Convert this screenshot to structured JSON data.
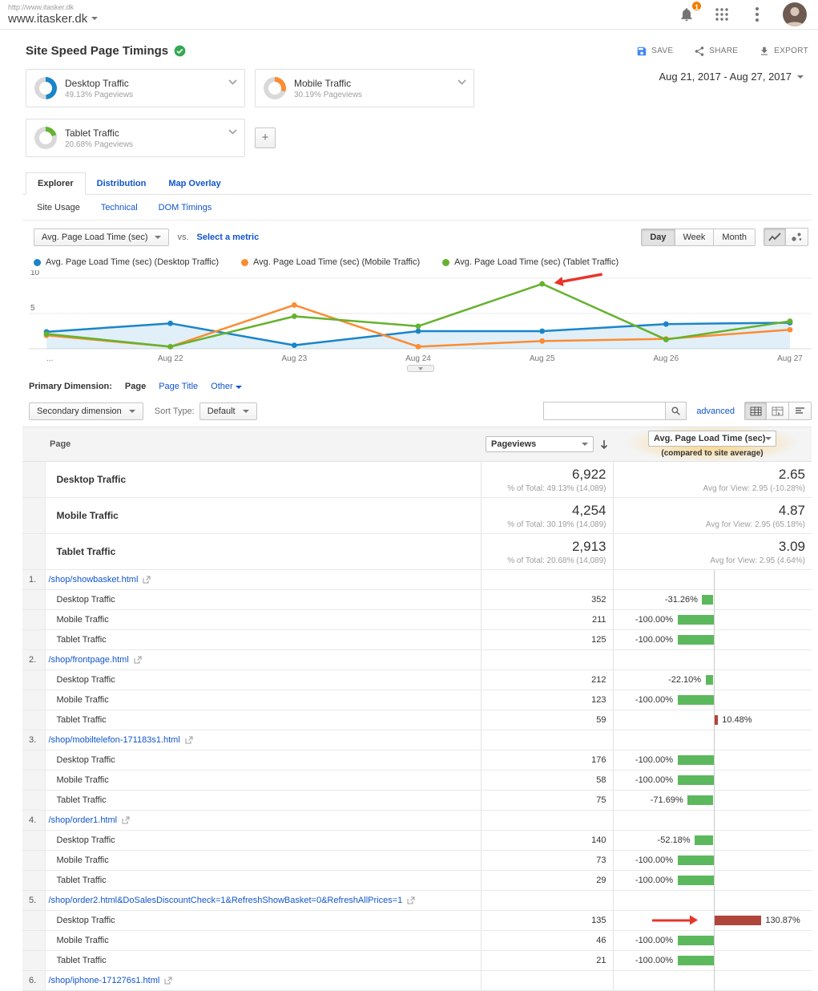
{
  "topbar": {
    "url": "http://www.itasker.dk",
    "site_name": "www.itasker.dk",
    "notification_count": "1"
  },
  "header": {
    "title": "Site Speed Page Timings",
    "save_label": "SAVE",
    "share_label": "SHARE",
    "export_label": "EXPORT",
    "date_range": "Aug 21, 2017 - Aug 27, 2017"
  },
  "segments": [
    {
      "name": "Desktop Traffic",
      "sub": "49.13% Pageviews",
      "percent": 49.13,
      "color": "#1a85c8"
    },
    {
      "name": "Mobile Traffic",
      "sub": "30.19% Pageviews",
      "percent": 30.19,
      "color": "#fb8c32"
    },
    {
      "name": "Tablet Traffic",
      "sub": "20.68% Pageviews",
      "percent": 20.68,
      "color": "#65b22e"
    }
  ],
  "segments_bar": {
    "add_label": "+"
  },
  "tabs": [
    "Explorer",
    "Distribution",
    "Map Overlay"
  ],
  "subtabs": [
    "Site Usage",
    "Technical",
    "DOM Timings"
  ],
  "metric_bar": {
    "metric": "Avg. Page Load Time (sec)",
    "vs": "vs.",
    "select_metric": "Select a metric",
    "granularity": [
      "Day",
      "Week",
      "Month"
    ]
  },
  "chart_data": {
    "type": "line",
    "x": [
      "...",
      "Aug 22",
      "Aug 23",
      "Aug 24",
      "Aug 25",
      "Aug 26",
      "Aug 27"
    ],
    "ylim": [
      0,
      10
    ],
    "yticks": [
      5,
      10
    ],
    "grid": true,
    "legend_position": "top",
    "series": [
      {
        "name": "Avg. Page Load Time (sec) (Desktop Traffic)",
        "color": "#1a85c8",
        "fill": true,
        "values": [
          2.4,
          3.6,
          0.5,
          2.5,
          2.5,
          3.5,
          3.7
        ]
      },
      {
        "name": "Avg. Page Load Time (sec) (Mobile Traffic)",
        "color": "#fb8c32",
        "fill": false,
        "values": [
          1.9,
          0.3,
          6.2,
          0.3,
          1.1,
          1.4,
          2.7
        ]
      },
      {
        "name": "Avg. Page Load Time (sec) (Tablet Traffic)",
        "color": "#65b22e",
        "fill": false,
        "values": [
          2.1,
          0.3,
          4.6,
          3.2,
          9.2,
          1.3,
          3.9
        ]
      }
    ],
    "annotation_arrow_target": {
      "series": 2,
      "point": 4
    }
  },
  "primary_dimension": {
    "label": "Primary Dimension:",
    "options": [
      "Page",
      "Page Title",
      "Other"
    ]
  },
  "toolbar": {
    "secondary_dimension": "Secondary dimension",
    "sort_type_label": "Sort Type:",
    "sort_type_value": "Default",
    "search_value": "",
    "advanced": "advanced"
  },
  "table": {
    "headers": {
      "page": "Page",
      "pageviews": "Pageviews",
      "metric": "Avg. Page Load Time (sec)",
      "metric_sub": "(compared to site average)"
    },
    "colors": {
      "negative_bar": "#5cb85c",
      "positive_bar": "#b0453b"
    },
    "summary": [
      {
        "label": "Desktop Traffic",
        "pageviews": "6,922",
        "pageviews_sub": "% of Total: 49.13% (14,089)",
        "metric": "2.65",
        "metric_sub": "Avg for View: 2.95 (-10.28%)"
      },
      {
        "label": "Mobile Traffic",
        "pageviews": "4,254",
        "pageviews_sub": "% of Total: 30.19% (14,089)",
        "metric": "4.87",
        "metric_sub": "Avg for View: 2.95 (65.18%)"
      },
      {
        "label": "Tablet Traffic",
        "pageviews": "2,913",
        "pageviews_sub": "% of Total: 20.68% (14,089)",
        "metric": "3.09",
        "metric_sub": "Avg for View: 2.95 (4.64%)"
      }
    ],
    "groups": [
      {
        "index": "1.",
        "url": "/shop/showbasket.html",
        "rows": [
          {
            "label": "Desktop Traffic",
            "pageviews": "352",
            "pct": -31.26,
            "pct_label": "-31.26%"
          },
          {
            "label": "Mobile Traffic",
            "pageviews": "211",
            "pct": -100.0,
            "pct_label": "-100.00%"
          },
          {
            "label": "Tablet Traffic",
            "pageviews": "125",
            "pct": -100.0,
            "pct_label": "-100.00%"
          }
        ]
      },
      {
        "index": "2.",
        "url": "/shop/frontpage.html",
        "rows": [
          {
            "label": "Desktop Traffic",
            "pageviews": "212",
            "pct": -22.1,
            "pct_label": "-22.10%"
          },
          {
            "label": "Mobile Traffic",
            "pageviews": "123",
            "pct": -100.0,
            "pct_label": "-100.00%"
          },
          {
            "label": "Tablet Traffic",
            "pageviews": "59",
            "pct": 10.48,
            "pct_label": "10.48%"
          }
        ]
      },
      {
        "index": "3.",
        "url": "/shop/mobiltelefon-171183s1.html",
        "rows": [
          {
            "label": "Desktop Traffic",
            "pageviews": "176",
            "pct": -100.0,
            "pct_label": "-100.00%"
          },
          {
            "label": "Mobile Traffic",
            "pageviews": "58",
            "pct": -100.0,
            "pct_label": "-100.00%"
          },
          {
            "label": "Tablet Traffic",
            "pageviews": "75",
            "pct": -71.69,
            "pct_label": "-71.69%"
          }
        ]
      },
      {
        "index": "4.",
        "url": "/shop/order1.html",
        "rows": [
          {
            "label": "Desktop Traffic",
            "pageviews": "140",
            "pct": -52.18,
            "pct_label": "-52.18%"
          },
          {
            "label": "Mobile Traffic",
            "pageviews": "73",
            "pct": -100.0,
            "pct_label": "-100.00%"
          },
          {
            "label": "Tablet Traffic",
            "pageviews": "29",
            "pct": -100.0,
            "pct_label": "-100.00%"
          }
        ]
      },
      {
        "index": "5.",
        "url": "/shop/order2.html&DoSalesDiscountCheck=1&RefreshShowBasket=0&RefreshAllPrices=1",
        "rows": [
          {
            "label": "Desktop Traffic",
            "pageviews": "135",
            "pct": 130.87,
            "pct_label": "130.87%",
            "annotated": true
          },
          {
            "label": "Mobile Traffic",
            "pageviews": "46",
            "pct": -100.0,
            "pct_label": "-100.00%"
          },
          {
            "label": "Tablet Traffic",
            "pageviews": "21",
            "pct": -100.0,
            "pct_label": "-100.00%"
          }
        ]
      },
      {
        "index": "6.",
        "url": "/shop/iphone-171276s1.html",
        "rows": []
      }
    ]
  }
}
